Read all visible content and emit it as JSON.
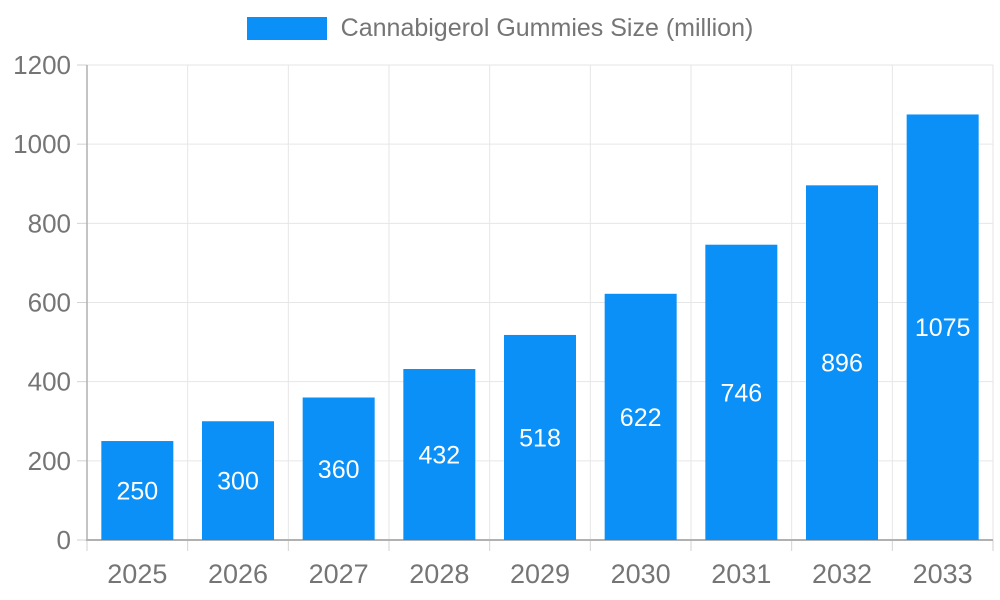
{
  "chart_data": {
    "type": "bar",
    "title": "Cannabigerol Gummies Size (million)",
    "categories": [
      "2025",
      "2026",
      "2027",
      "2028",
      "2029",
      "2030",
      "2031",
      "2032",
      "2033"
    ],
    "values": [
      250,
      300,
      360,
      432,
      518,
      622,
      746,
      896,
      1075
    ],
    "xlabel": "",
    "ylabel": "",
    "ylim": [
      0,
      1200
    ],
    "ytick_step": 200,
    "ytick_labels": [
      "0",
      "200",
      "400",
      "600",
      "800",
      "1000",
      "1200"
    ],
    "grid": true,
    "legend_position": "top-center",
    "value_labels_shown": true
  },
  "colors": {
    "bar": "#0a90f7",
    "axis_line": "#b1b1b1",
    "grid_line": "#e6e6e6",
    "tick_mark": "#d2d2d2",
    "axis_label": "#757575",
    "value_label": "#ffffff",
    "background": "#ffffff"
  }
}
